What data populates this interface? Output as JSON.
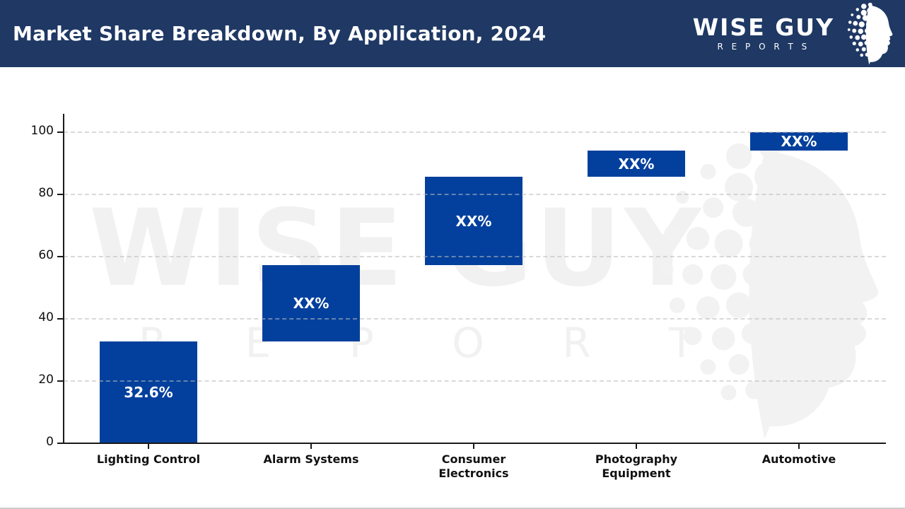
{
  "header": {
    "title": "Market Share Breakdown, By Application, 2024",
    "logo": {
      "line1": "WISE GUY",
      "line2": "R E P O R T S"
    }
  },
  "watermark": {
    "line1": "WISE GUY",
    "line2": "R E P O R T S"
  },
  "chart_data": {
    "type": "bar",
    "variant": "floating-waterfall",
    "title": "Market Share Breakdown, By Application, 2024",
    "categories": [
      "Lighting Control",
      "Alarm Systems",
      "Consumer Electronics",
      "Photography Equipment",
      "Automotive"
    ],
    "segments": [
      {
        "category": "Lighting Control",
        "start": 0,
        "end": 32.6,
        "label": "32.6%"
      },
      {
        "category": "Alarm Systems",
        "start": 32.6,
        "end": 57.2,
        "label": "XX%"
      },
      {
        "category": "Consumer Electronics",
        "start": 57.2,
        "end": 85.6,
        "label": "XX%"
      },
      {
        "category": "Photography Equipment",
        "start": 85.6,
        "end": 94,
        "label": "XX%"
      },
      {
        "category": "Automotive",
        "start": 94,
        "end": 100,
        "label": "XX%"
      }
    ],
    "yticks": [
      0,
      20,
      40,
      60,
      80,
      100
    ],
    "ylim": [
      0,
      105
    ],
    "xlabel": "",
    "ylabel": "",
    "grid": "horizontal-dashed",
    "legend": "none",
    "bar_color": "#03409d",
    "bar_label_color": "#ffffff",
    "header_color": "#1f3864",
    "axis_color": "#1a1a1a"
  }
}
